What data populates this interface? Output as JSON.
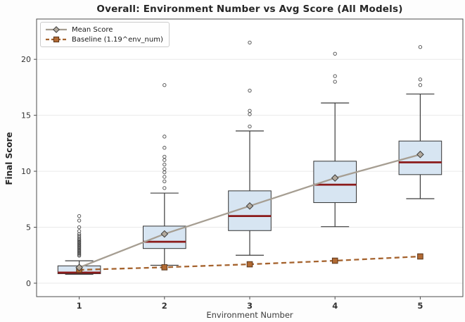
{
  "figure": {
    "title": "Overall: Environment Number vs Avg Score (All Models)",
    "xlabel": "Environment Number",
    "ylabel": "Final Score"
  },
  "chart_data": {
    "type": "boxplot",
    "title": "Overall: Environment Number vs Avg Score (All Models)",
    "xlabel": "Environment Number",
    "ylabel": "Final Score",
    "xlim": [
      0.5,
      5.5
    ],
    "ylim": [
      -1.2,
      23.6
    ],
    "xticks": [
      1,
      2,
      3,
      4,
      5
    ],
    "yticks": [
      0,
      5,
      10,
      15,
      20
    ],
    "grid": true,
    "legend_position": "upper-left",
    "boxes": [
      {
        "x": 1,
        "q1": 0.85,
        "median": 0.95,
        "q3": 1.55,
        "whisker_low": 0.8,
        "whisker_high": 2.0,
        "outliers": [
          2.45,
          2.55,
          2.65,
          2.75,
          2.85,
          2.95,
          3.05,
          3.15,
          3.25,
          3.35,
          3.45,
          3.55,
          3.65,
          3.75,
          3.85,
          3.95,
          4.1,
          4.25,
          4.4,
          4.65,
          5.0,
          5.6,
          6.0
        ]
      },
      {
        "x": 2,
        "q1": 3.1,
        "median": 3.7,
        "q3": 5.1,
        "whisker_low": 1.6,
        "whisker_high": 8.05,
        "outliers": [
          8.5,
          9.1,
          9.5,
          9.9,
          10.2,
          10.6,
          11.0,
          11.3,
          12.1,
          13.1,
          17.7
        ]
      },
      {
        "x": 3,
        "q1": 4.7,
        "median": 6.0,
        "q3": 8.25,
        "whisker_low": 2.5,
        "whisker_high": 13.6,
        "outliers": [
          14.0,
          15.1,
          15.4,
          17.2,
          21.5
        ]
      },
      {
        "x": 4,
        "q1": 7.2,
        "median": 8.8,
        "q3": 10.9,
        "whisker_low": 5.05,
        "whisker_high": 16.1,
        "outliers": [
          18.0,
          18.5,
          20.5
        ]
      },
      {
        "x": 5,
        "q1": 9.7,
        "median": 10.8,
        "q3": 12.7,
        "whisker_low": 7.55,
        "whisker_high": 16.9,
        "outliers": [
          17.7,
          18.2,
          21.1
        ]
      }
    ],
    "series": [
      {
        "name": "Mean Score",
        "marker": "diamond",
        "style": "solid",
        "color": "#a69e92",
        "marker_fill": "#b3aa9d",
        "marker_edge": "#3d3d3d",
        "x": [
          1,
          2,
          3,
          4,
          5
        ],
        "values": [
          1.4,
          4.4,
          6.9,
          9.4,
          11.5
        ]
      },
      {
        "name": "Baseline (1.19^env_num)",
        "marker": "square",
        "style": "dashed",
        "color": "#a5632e",
        "marker_fill": "#b26a33",
        "marker_edge": "#59351a",
        "x": [
          1,
          2,
          3,
          4,
          5
        ],
        "values": [
          1.19,
          1.42,
          1.69,
          2.01,
          2.39
        ]
      }
    ],
    "colors": {
      "box_fill": "#d7e5f2",
      "box_edge": "#333333",
      "median": "#8b1a1a",
      "whisker": "#3c3c3c",
      "outlier_edge": "#4a4a4a",
      "grid": "#e9e9e9",
      "spine": "#4d4d4d",
      "tick_label": "#333333",
      "plot_bg": "#ffffff"
    }
  }
}
